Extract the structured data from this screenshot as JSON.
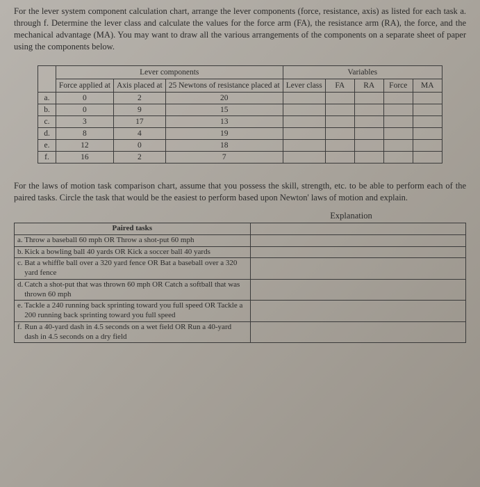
{
  "intro": "For the lever system component calculation chart, arrange the lever components (force, resistance, axis) as listed for each task a. through f. Determine the lever class and calculate the values for the force arm (FA), the resistance arm (RA), the force, and the mechanical advantage (MA). You may want to draw all the various arrangements of the components on a separate sheet of paper using the components below.",
  "lever_table": {
    "section_left": "Lever components",
    "section_right": "Variables",
    "head_force": "Force applied at",
    "head_axis": "Axis placed at",
    "head_newtons": "25 Newtons of resistance placed at",
    "head_class": "Lever class",
    "head_fa": "FA",
    "head_ra": "RA",
    "head_forcevar": "Force",
    "head_ma": "MA",
    "rows": [
      {
        "label": "a.",
        "force": "0",
        "axis": "2",
        "newt": "20"
      },
      {
        "label": "b.",
        "force": "0",
        "axis": "9",
        "newt": "15"
      },
      {
        "label": "c.",
        "force": "3",
        "axis": "17",
        "newt": "13"
      },
      {
        "label": "d.",
        "force": "8",
        "axis": "4",
        "newt": "19"
      },
      {
        "label": "e.",
        "force": "12",
        "axis": "0",
        "newt": "18"
      },
      {
        "label": "f.",
        "force": "16",
        "axis": "2",
        "newt": "7"
      }
    ]
  },
  "mid": "For the laws of motion task comparison chart, assume that you possess the skill, strength, etc. to be able to perform each of the paired tasks. Circle the task that would be the easiest to perform based upon Newton' laws of motion and explain.",
  "tasks_table": {
    "head_tasks": "Paired tasks",
    "head_explain": "Explanation",
    "rows": [
      {
        "label": "a.",
        "text": "Throw a baseball 60 mph OR Throw a shot-put 60 mph"
      },
      {
        "label": "b.",
        "text": "Kick a bowling ball 40 yards OR Kick a soccer ball 40 yards"
      },
      {
        "label": "c.",
        "text": "Bat a whiffle ball over a 320 yard fence OR Bat a baseball over a 320 yard fence"
      },
      {
        "label": "d.",
        "text": "Catch a shot-put that was thrown 60 mph OR Catch a softball that was thrown 60 mph"
      },
      {
        "label": "e.",
        "text": "Tackle a 240 running back sprinting toward you full speed OR Tackle a 200 running back sprinting toward you full speed"
      },
      {
        "label": "f.",
        "text": "Run a 40-yard dash in 4.5 seconds on a wet field OR Run a 40-yard dash in 4.5 seconds on a dry field"
      }
    ]
  }
}
